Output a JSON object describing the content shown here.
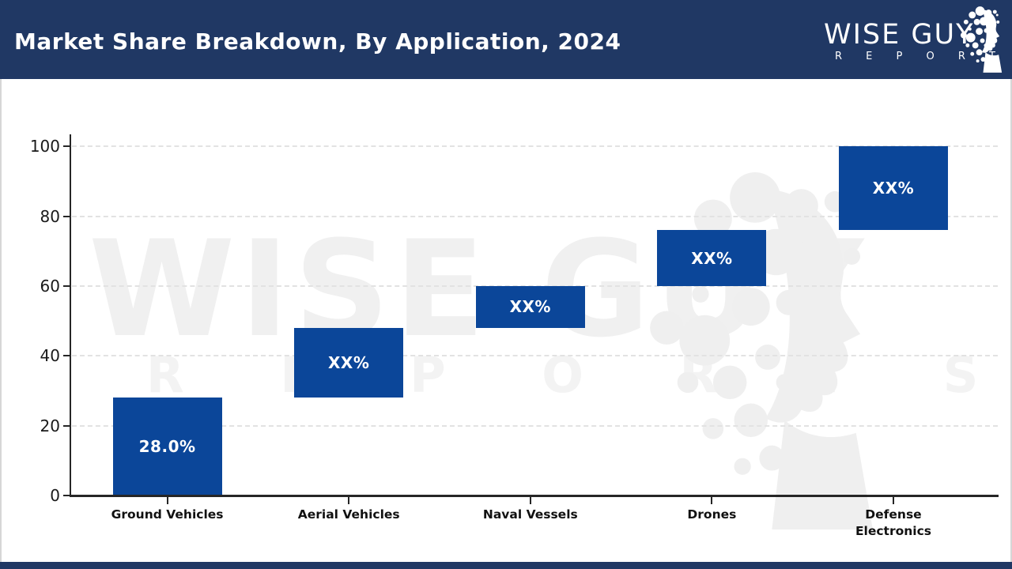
{
  "header": {
    "title": "Market Share Breakdown, By Application, 2024",
    "bg_color": "#203864",
    "logo": {
      "line1": "WISE GUY",
      "line2": "R E P O R T S"
    }
  },
  "watermark": {
    "line1": "WISE GUY",
    "line2": "R E P O R T S"
  },
  "chart_data": {
    "type": "bar",
    "subtype": "waterfall",
    "title": "Market Share Breakdown, By Application, 2024",
    "categories": [
      "Ground Vehicles",
      "Aerial Vehicles",
      "Naval Vessels",
      "Drones",
      "Defense Electronics"
    ],
    "series": [
      {
        "name": "Market Share",
        "base": [
          0,
          28,
          48,
          60,
          76
        ],
        "values": [
          28,
          20,
          12,
          16,
          24
        ]
      }
    ],
    "cumulative_ranges": [
      [
        0,
        28
      ],
      [
        28,
        48
      ],
      [
        48,
        60
      ],
      [
        60,
        76
      ],
      [
        76,
        100
      ]
    ],
    "bar_labels": [
      "28.0%",
      "XX%",
      "XX%",
      "XX%",
      "XX%"
    ],
    "yticks": [
      0,
      20,
      40,
      60,
      80,
      100
    ],
    "ylim": [
      0,
      100
    ],
    "xlabel": "",
    "ylabel": "",
    "grid": "horizontal-dashed",
    "legend": "none",
    "bar_color": "#0b4699",
    "label_color": "#ffffff"
  }
}
